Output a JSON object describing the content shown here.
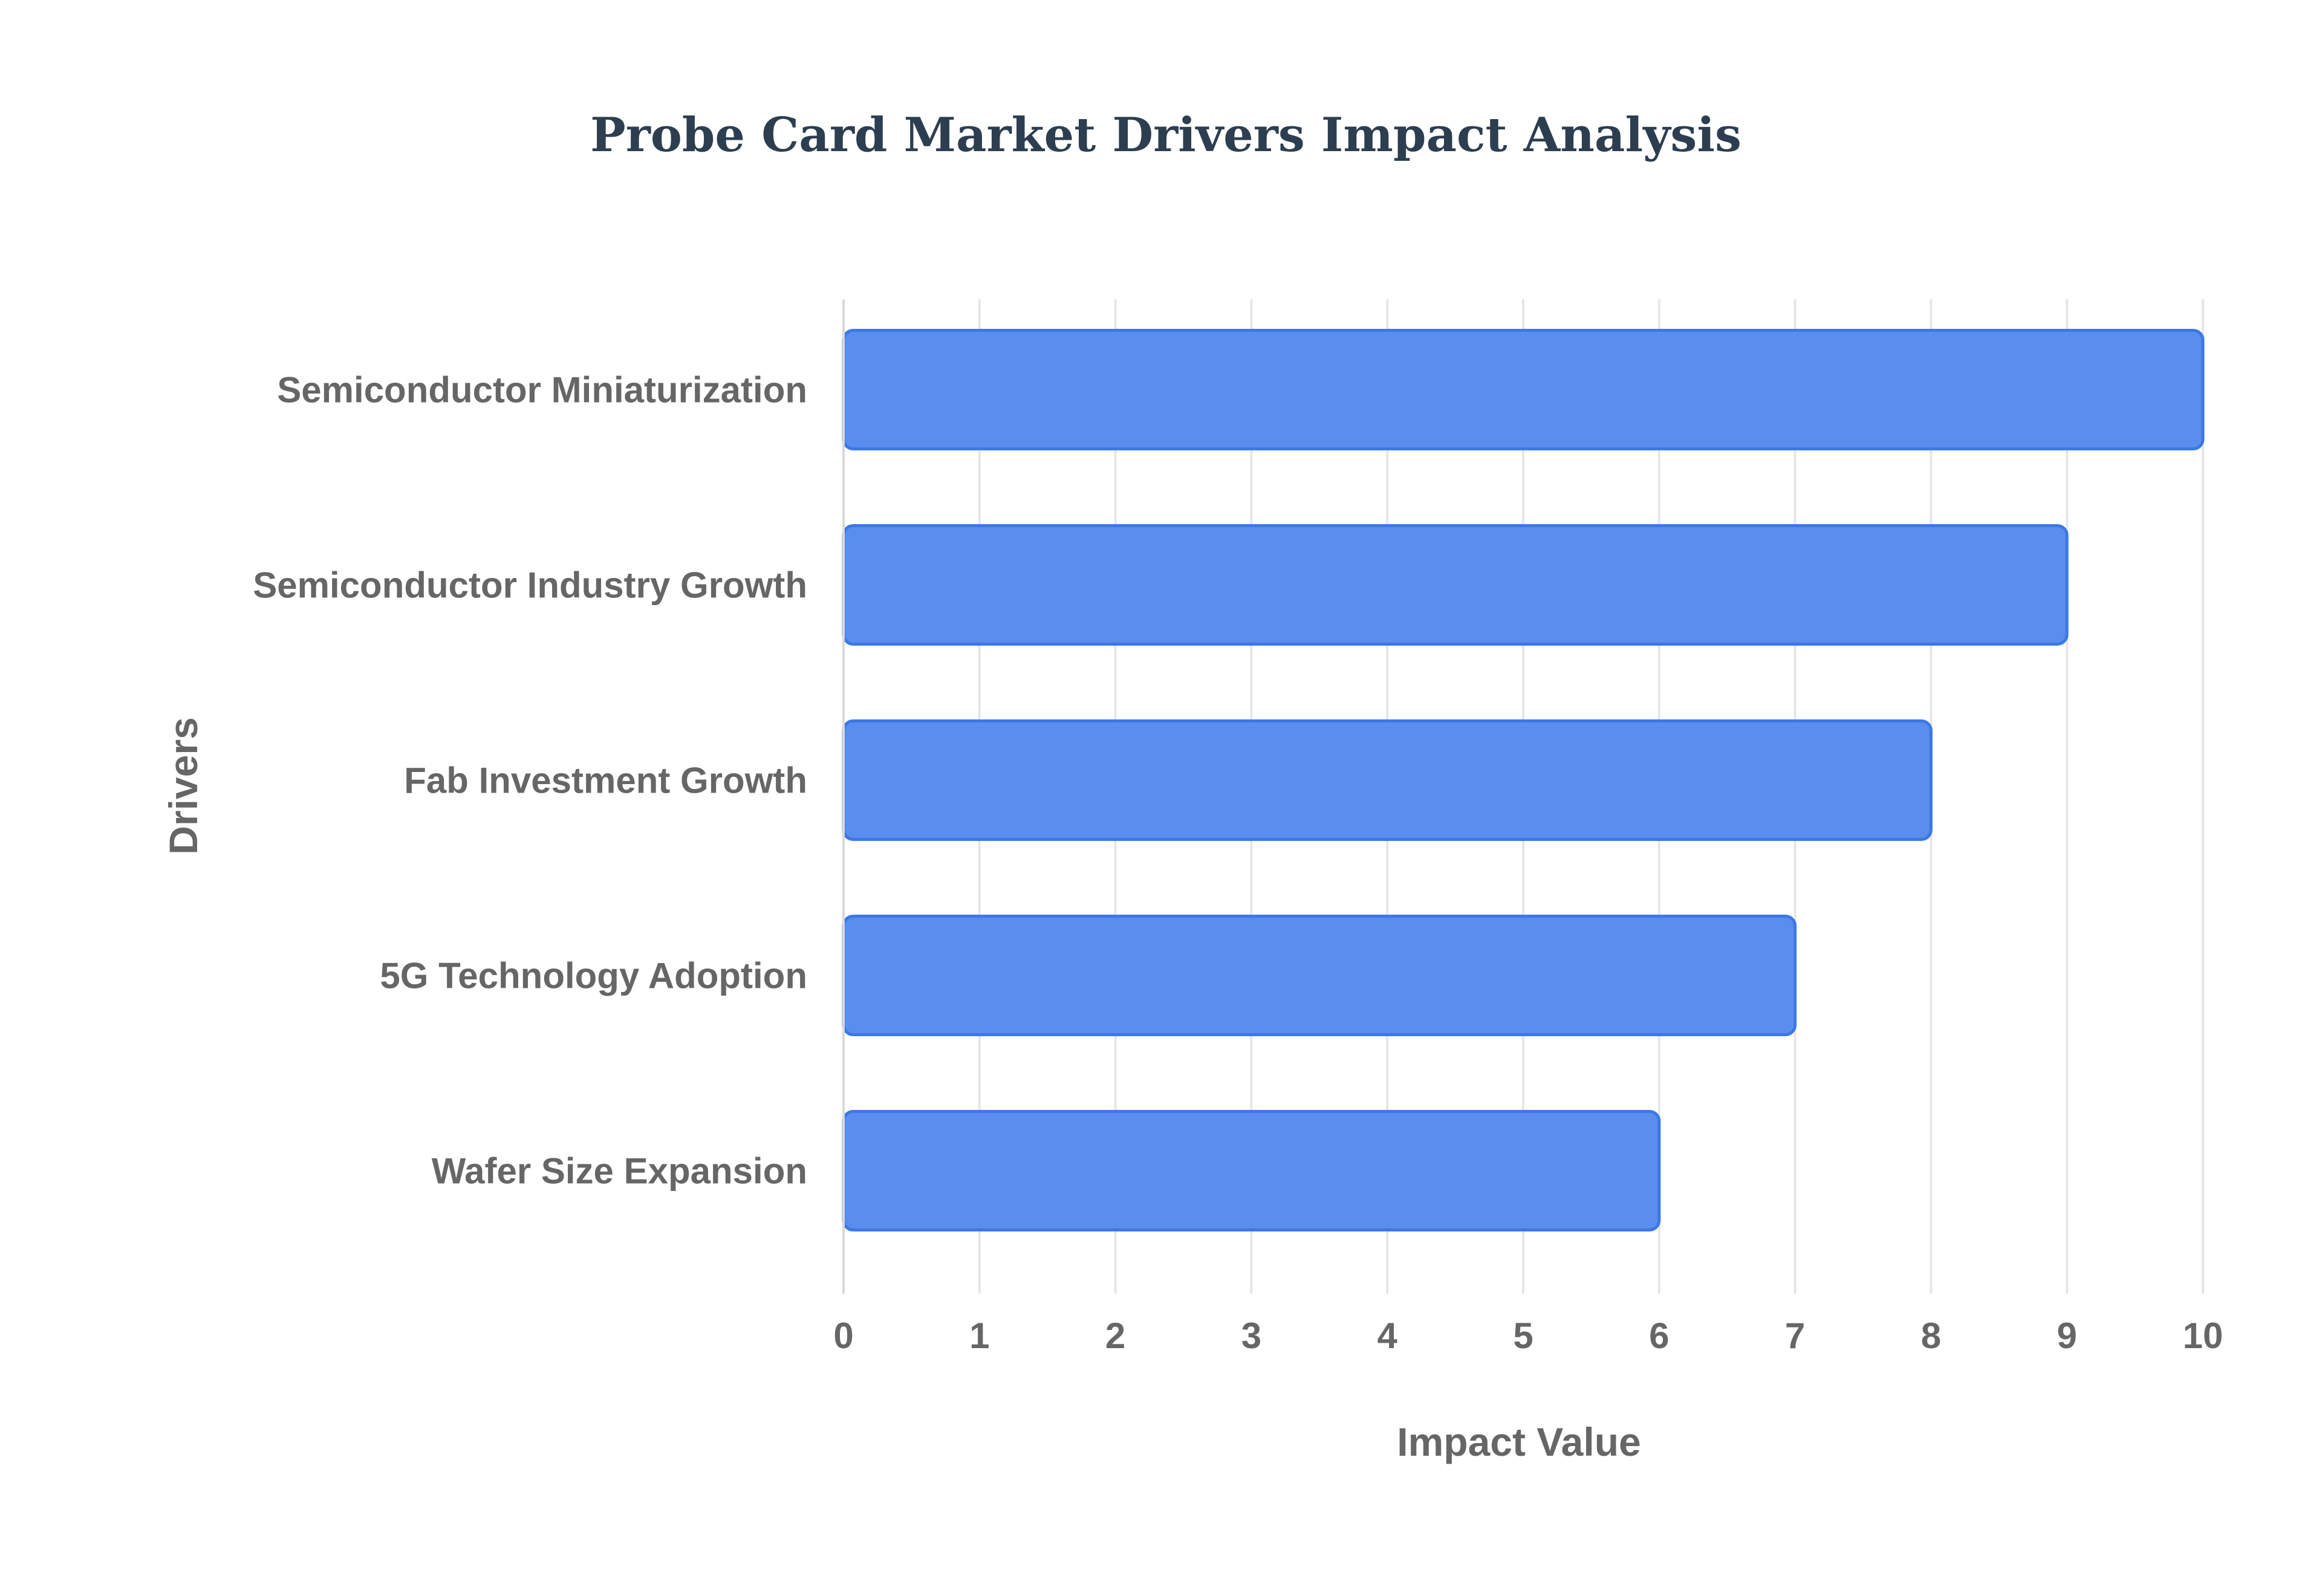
{
  "chart_data": {
    "type": "bar",
    "orientation": "horizontal",
    "title": "Probe Card Market Drivers Impact Analysis",
    "xlabel": "Impact Value",
    "ylabel": "Drivers",
    "categories": [
      "Semiconductor Miniaturization",
      "Semiconductor Industry Growth",
      "Fab Investment Growth",
      "5G Technology Adoption",
      "Wafer Size Expansion"
    ],
    "values": [
      10,
      9,
      8,
      7,
      6
    ],
    "xlim": [
      0,
      10
    ],
    "x_ticks": [
      "0",
      "1",
      "2",
      "3",
      "4",
      "5",
      "6",
      "7",
      "8",
      "9",
      "10"
    ],
    "grid": true,
    "legend": false,
    "bar_color": "#5b8def",
    "bar_border_color": "#3b78e7"
  }
}
